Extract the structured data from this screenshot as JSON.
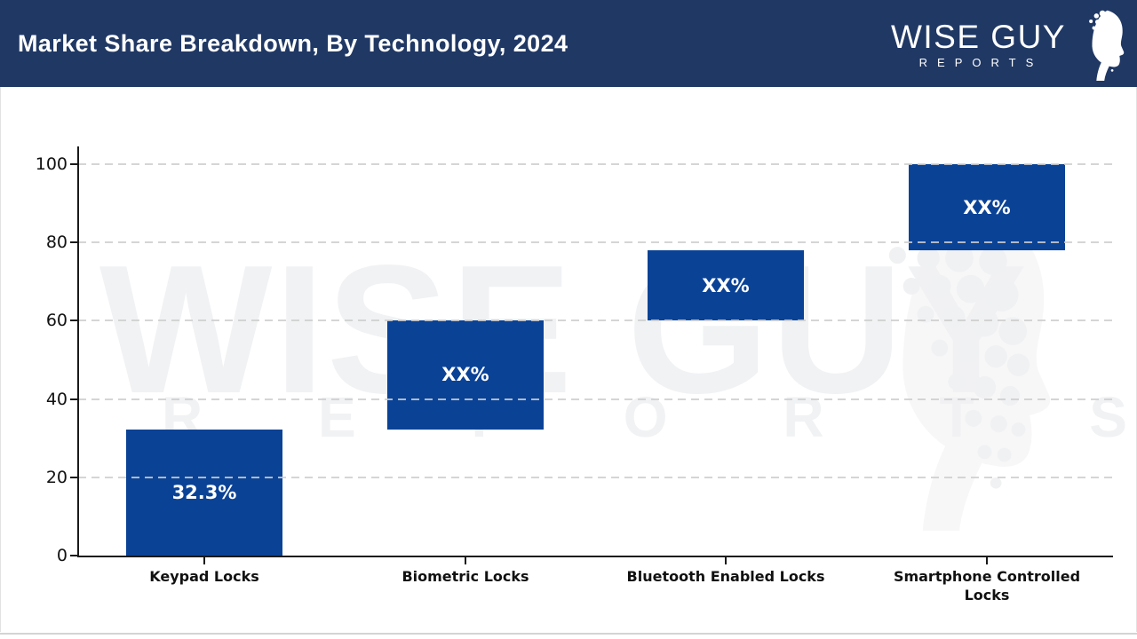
{
  "header": {
    "title": "Market Share Breakdown, By Technology, 2024",
    "bg_color": "#203864",
    "logo": {
      "line1": "WISE GUY",
      "line2": "REPORTS"
    }
  },
  "watermark": {
    "line1": "WISE GUY",
    "line2": "R E P O R T S",
    "color": "#f1f2f4"
  },
  "chart_data": {
    "type": "bar",
    "subtype": "floating-waterfall",
    "title": "Market Share Breakdown, By Technology, 2024",
    "categories": [
      "Keypad Locks",
      "Biometric Locks",
      "Bluetooth Enabled Locks",
      "Smartphone Controlled Locks"
    ],
    "bars": [
      {
        "category": "Keypad Locks",
        "label": "32.3%",
        "start": 0,
        "end": 32.3
      },
      {
        "category": "Biometric Locks",
        "label": "XX%",
        "start": 32.3,
        "end": 60
      },
      {
        "category": "Bluetooth Enabled Locks",
        "label": "XX%",
        "start": 60,
        "end": 78
      },
      {
        "category": "Smartphone Controlled Locks",
        "label": "XX%",
        "start": 78,
        "end": 100
      }
    ],
    "y_ticks": [
      0,
      20,
      40,
      60,
      80,
      100
    ],
    "ylim": [
      0,
      105
    ],
    "xlabel": "",
    "ylabel": "",
    "grid": "horizontal-dashed",
    "legend": "none",
    "bar_color": "#0a4296",
    "bar_label_color": "#ffffff",
    "gridline_color": "#d6d6d6",
    "axis_color": "#1a1a1a"
  }
}
